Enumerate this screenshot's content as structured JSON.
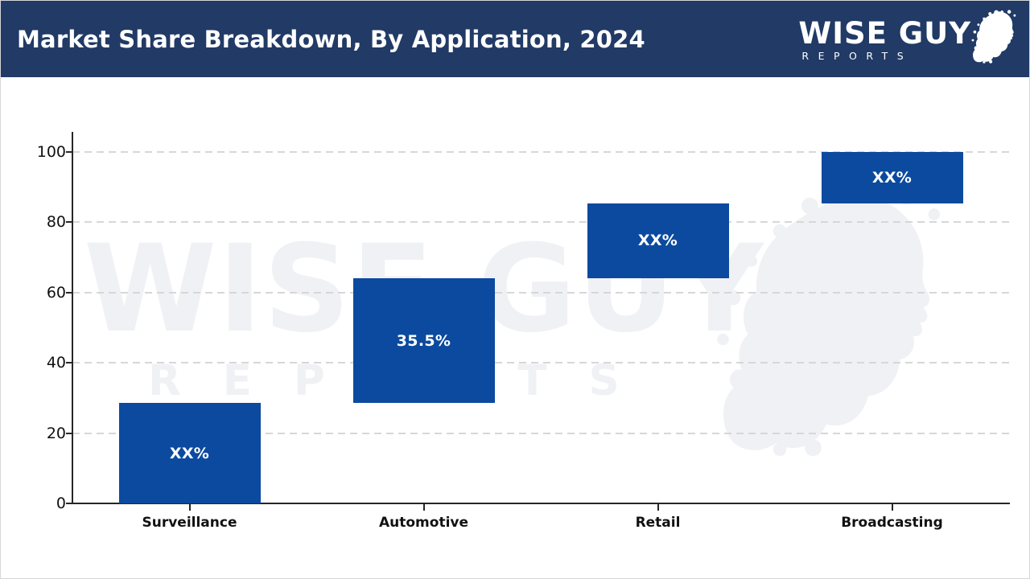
{
  "header": {
    "title": "Market Share Breakdown, By Application, 2024",
    "logo": {
      "line1": "WISE GUY",
      "line2": "REPORTS"
    }
  },
  "watermark": {
    "line1": "WISE GUY",
    "line2": "REPORTS"
  },
  "colors": {
    "header_bg": "#213A66",
    "bar_blue": "#0B4A9F",
    "watermark_gray": "#f0f1f4",
    "axis_dark": "#262626",
    "gridline_gray": "#d7d7d7"
  },
  "chart_data": {
    "type": "bar",
    "variant": "waterfall",
    "title": "Market Share Breakdown, By Application, 2024",
    "categories": [
      "Surveillance",
      "Automotive",
      "Retail",
      "Broadcasting"
    ],
    "segments": [
      {
        "category": "Surveillance",
        "start": 0,
        "end": 28.5,
        "label": "XX%"
      },
      {
        "category": "Automotive",
        "start": 28.5,
        "end": 64,
        "label": "35.5%"
      },
      {
        "category": "Retail",
        "start": 64,
        "end": 85.3,
        "label": "XX%"
      },
      {
        "category": "Broadcasting",
        "start": 85.3,
        "end": 100,
        "label": "XX%"
      }
    ],
    "yticks": [
      0,
      20,
      40,
      60,
      80,
      100
    ],
    "ylim": [
      0,
      105.5
    ],
    "xlabel": "",
    "ylabel": "",
    "grid": "horizontal-dashed",
    "legend": "none",
    "bar_color": "#0B4A9F",
    "bar_label_color": "#ffffff"
  }
}
